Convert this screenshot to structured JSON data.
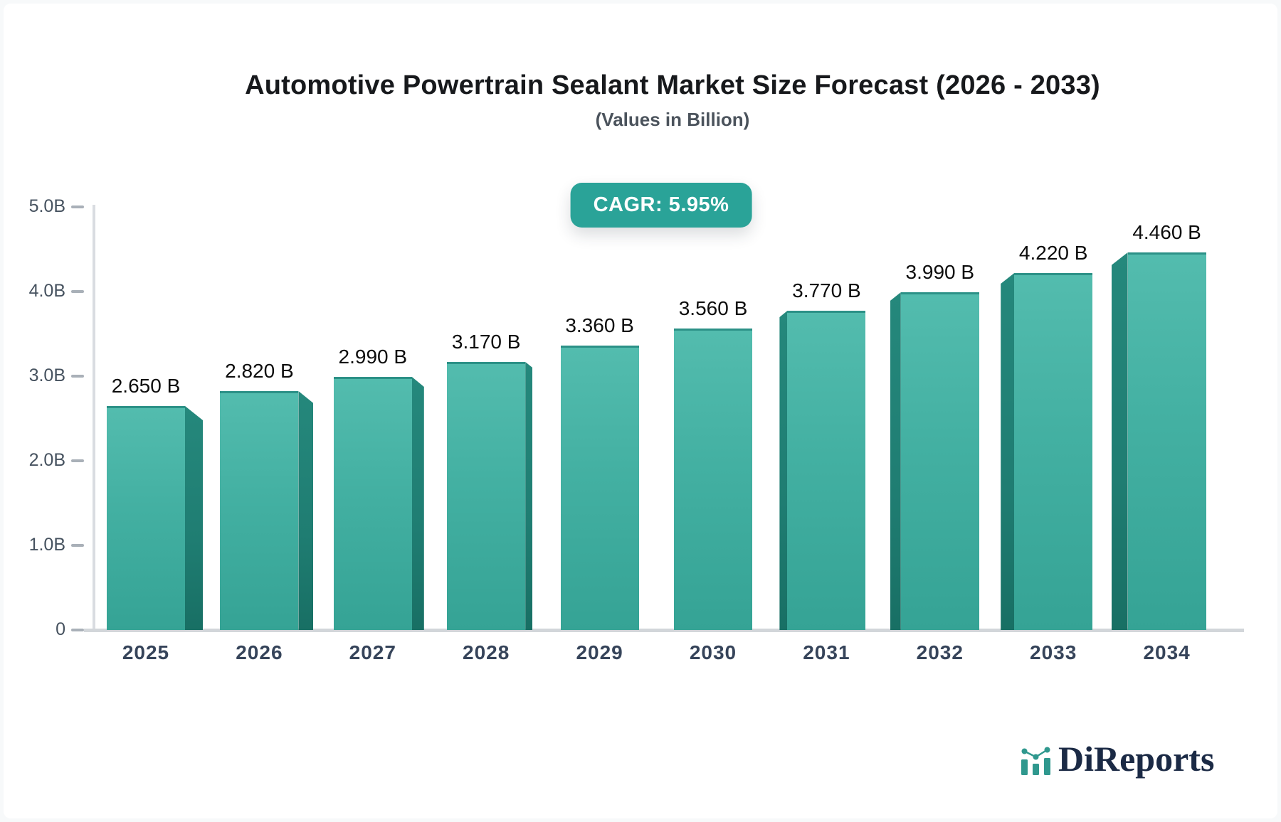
{
  "header": {
    "title": "Automotive Powertrain Sealant Market Size Forecast (2026 - 2033)",
    "subtitle": "(Values in Billion)",
    "cagr": "CAGR: 5.95%"
  },
  "brand": {
    "name": "DiReports",
    "icon": "mini-bar-chart-icon"
  },
  "colors": {
    "bar_face": "#45b2a5",
    "bar_face_dark": "#35a395",
    "bar_edge": "#2c9187",
    "bar_side": "#1f7d72",
    "badge": "#2aa398",
    "axis_gray": "#d2d6da",
    "tick_text": "#46525f",
    "year_text": "#36445a",
    "navy": "#1b2a45"
  },
  "chart_data": {
    "type": "bar",
    "title": "Automotive Powertrain Sealant Market Size Forecast (2026 - 2033)",
    "subtitle": "(Values in Billion)",
    "cagr_pct": 5.95,
    "unit": "Billion",
    "categories": [
      "2025",
      "2026",
      "2027",
      "2028",
      "2029",
      "2030",
      "2031",
      "2032",
      "2033",
      "2034"
    ],
    "values": [
      2.65,
      2.82,
      2.99,
      3.17,
      3.36,
      3.56,
      3.77,
      3.99,
      4.22,
      4.46
    ],
    "data_labels": [
      "2.650 B",
      "2.820 B",
      "2.990 B",
      "3.170 B",
      "3.360 B",
      "3.560 B",
      "3.770 B",
      "3.990 B",
      "4.220 B",
      "4.460 B"
    ],
    "xlabel": "",
    "ylabel": "",
    "ylim": [
      0,
      5.0
    ],
    "y_ticks": [
      {
        "value": 5.0,
        "label": "5.0B"
      },
      {
        "value": 4.0,
        "label": "4.0B"
      },
      {
        "value": 3.0,
        "label": "3.0B"
      },
      {
        "value": 2.0,
        "label": "2.0B"
      },
      {
        "value": 1.0,
        "label": "1.0B"
      },
      {
        "value": 0.0,
        "label": "0"
      }
    ],
    "grid": false,
    "legend": "none",
    "style": "3d-perspective-bars"
  }
}
